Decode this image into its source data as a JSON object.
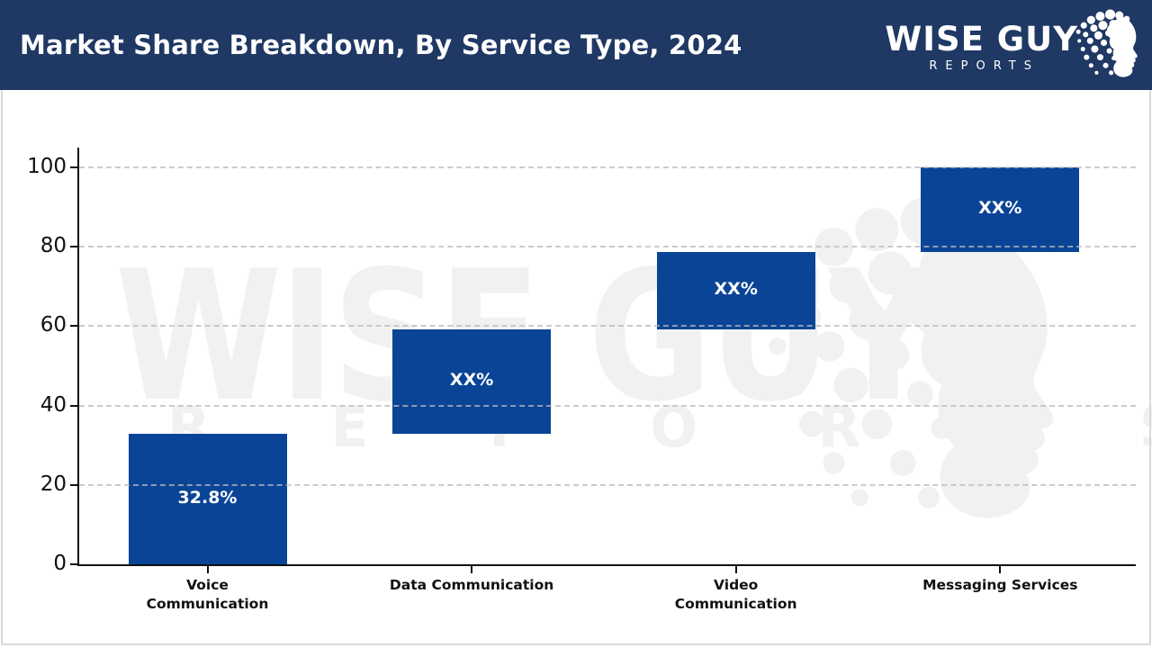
{
  "header": {
    "title": "Market Share Breakdown, By Service Type, 2024",
    "logo": {
      "line1": "WISE GUY",
      "line2": "REPORTS"
    }
  },
  "watermark": {
    "line1": "WISE GUY",
    "line2": "REPORTS"
  },
  "chart_data": {
    "type": "bar",
    "subtype": "waterfall",
    "title": "Market Share Breakdown, By Service Type, 2024",
    "xlabel": "",
    "ylabel": "",
    "ylim": [
      0,
      105
    ],
    "yticks": [
      0,
      20,
      40,
      60,
      80,
      100
    ],
    "grid": "horizontal-dashed",
    "legend": "none",
    "bar_color": "#0a4496",
    "value_label_color": "#ffffff",
    "categories": [
      "Voice\nCommunication",
      "Data Communication",
      "Video\nCommunication",
      "Messaging Services"
    ],
    "segments": [
      {
        "category": "Voice\nCommunication",
        "start": 0,
        "end": 32.8,
        "value_label": "32.8%"
      },
      {
        "category": "Data Communication",
        "start": 32.8,
        "end": 59.1,
        "value_label": "XX%"
      },
      {
        "category": "Video\nCommunication",
        "start": 59.1,
        "end": 78.6,
        "value_label": "XX%"
      },
      {
        "category": "Messaging Services",
        "start": 78.6,
        "end": 100,
        "value_label": "XX%"
      }
    ]
  },
  "colors": {
    "header_bg": "#1f3864",
    "bar": "#0a4496",
    "gridline": "#bbbbbb",
    "axis": "#111111",
    "watermark": "#f1f1f1",
    "frame": "#d9d9d9"
  }
}
